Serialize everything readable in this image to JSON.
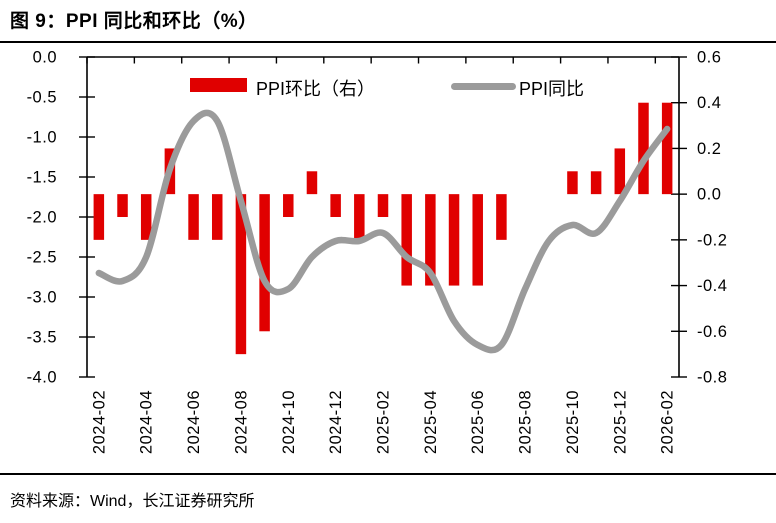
{
  "header": {
    "title": "图 9：PPI 同比和环比（%）"
  },
  "legend": {
    "bar_label": "PPI环比（右）",
    "line_label": "PPI同比"
  },
  "footer": {
    "source": "资料来源：Wind，长江证券研究所"
  },
  "colors": {
    "bar": "#E00000",
    "line": "#9B9B9B",
    "axis": "#000000",
    "text": "#000000",
    "background": "#FFFFFF"
  },
  "chart_data": {
    "type": "bar",
    "subtype": "bar+line combo, dual axis",
    "title": "PPI 同比和环比（%）",
    "categories": [
      "2024-02",
      "2024-03",
      "2024-04",
      "2024-05",
      "2024-06",
      "2024-07",
      "2024-08",
      "2024-09",
      "2024-10",
      "2024-11",
      "2024-12",
      "2025-01",
      "2025-02",
      "2025-03",
      "2025-04",
      "2025-05",
      "2025-06",
      "2025-07",
      "2025-08",
      "2025-09",
      "2025-10",
      "2025-11",
      "2025-12",
      "2026-01",
      "2026-02"
    ],
    "series": [
      {
        "name": "PPI环比（右）",
        "type": "bar",
        "axis": "right",
        "values": [
          -0.2,
          -0.1,
          -0.2,
          0.2,
          -0.2,
          -0.2,
          -0.7,
          -0.6,
          -0.1,
          0.1,
          -0.1,
          -0.2,
          -0.1,
          -0.4,
          -0.4,
          -0.4,
          -0.4,
          -0.2,
          0.0,
          0.0,
          0.1,
          0.1,
          0.2,
          0.4,
          0.4
        ]
      },
      {
        "name": "PPI同比",
        "type": "line",
        "axis": "left",
        "values": [
          -2.7,
          -2.8,
          -2.5,
          -1.4,
          -0.8,
          -0.8,
          -1.8,
          -2.8,
          -2.9,
          -2.5,
          -2.3,
          -2.3,
          -2.2,
          -2.5,
          -2.7,
          -3.3,
          -3.6,
          -3.6,
          -2.9,
          -2.3,
          -2.1,
          -2.2,
          -1.8,
          -1.3,
          -0.9
        ]
      }
    ],
    "left_axis": {
      "ticks": [
        "0.0",
        "-0.5",
        "-1.0",
        "-1.5",
        "-2.0",
        "-2.5",
        "-3.0",
        "-3.5",
        "-4.0"
      ],
      "range": [
        0.0,
        -4.0
      ]
    },
    "right_axis": {
      "ticks": [
        "0.6",
        "0.4",
        "0.2",
        "0.0",
        "-0.2",
        "-0.4",
        "-0.6",
        "-0.8"
      ],
      "range": [
        0.6,
        -0.8
      ]
    },
    "x_label_every": 2,
    "grid": false,
    "legend_position": "top-inside",
    "smooth_line": true
  }
}
